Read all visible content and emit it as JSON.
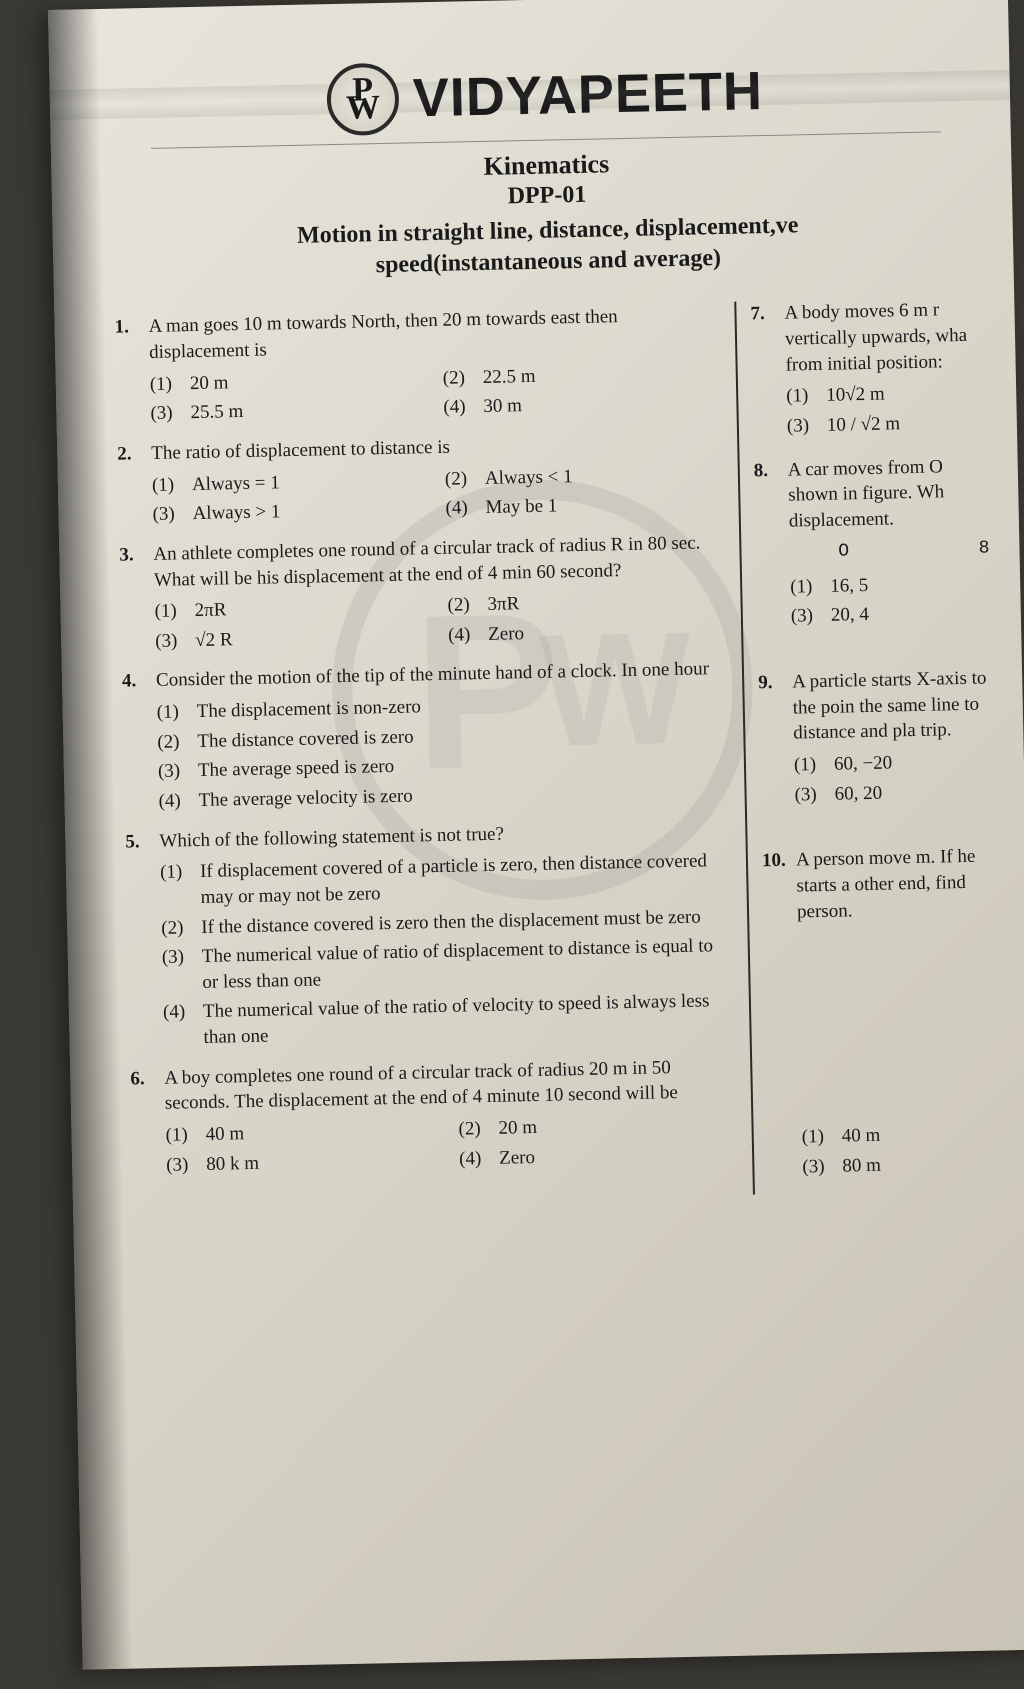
{
  "page": {
    "brand": "VIDYAPEETH",
    "logo_top": "P",
    "logo_bottom": "W",
    "subject": "Kinematics",
    "dpp": "DPP-01",
    "topic_line1": "Motion in straight line, distance, displacement,ve",
    "topic_line2": "speed(instantaneous and average)",
    "background_color": "#3a3832",
    "paper_bg_light": "#e8e5dc",
    "paper_bg_dark": "#c8c3b5",
    "text_color": "#1a1a1a",
    "watermark_letter": "P",
    "watermark_letter2": "W"
  },
  "left_questions": [
    {
      "num": "1.",
      "stem": "A man goes 10 m towards North, then 20 m towards east then displacement is",
      "layout": "2col",
      "opts": [
        {
          "n": "(1)",
          "t": "20 m"
        },
        {
          "n": "(2)",
          "t": "22.5 m"
        },
        {
          "n": "(3)",
          "t": "25.5 m"
        },
        {
          "n": "(4)",
          "t": "30 m"
        }
      ]
    },
    {
      "num": "2.",
      "stem": "The ratio of displacement to distance is",
      "layout": "2col",
      "opts": [
        {
          "n": "(1)",
          "t": "Always = 1"
        },
        {
          "n": "(2)",
          "t": "Always < 1"
        },
        {
          "n": "(3)",
          "t": "Always > 1"
        },
        {
          "n": "(4)",
          "t": "May be 1"
        }
      ]
    },
    {
      "num": "3.",
      "stem": "An athlete completes one round of a circular track of radius R in 80 sec. What will be his displacement at the end of 4 min 60 second?",
      "layout": "2col",
      "opts": [
        {
          "n": "(1)",
          "t": "2πR"
        },
        {
          "n": "(2)",
          "t": "3πR"
        },
        {
          "n": "(3)",
          "t": "√2 R"
        },
        {
          "n": "(4)",
          "t": "Zero"
        }
      ]
    },
    {
      "num": "4.",
      "stem": "Consider the motion of the tip of the minute hand of a clock. In one hour",
      "layout": "1col",
      "opts": [
        {
          "n": "(1)",
          "t": "The displacement is non-zero"
        },
        {
          "n": "(2)",
          "t": "The distance covered is zero"
        },
        {
          "n": "(3)",
          "t": "The average speed is zero"
        },
        {
          "n": "(4)",
          "t": "The average velocity is zero"
        }
      ]
    },
    {
      "num": "5.",
      "stem": "Which of the following statement is not true?",
      "layout": "1col",
      "opts": [
        {
          "n": "(1)",
          "t": "If displacement covered of a particle is zero, then distance covered may or may not be zero"
        },
        {
          "n": "(2)",
          "t": "If the distance covered is zero then the displacement must be zero"
        },
        {
          "n": "(3)",
          "t": "The numerical value of ratio of displacement to distance is equal to or less than one"
        },
        {
          "n": "(4)",
          "t": "The numerical value of the ratio of velocity to speed is always less than one"
        }
      ]
    },
    {
      "num": "6.",
      "stem": "A boy completes one round of a circular track of radius 20 m in 50 seconds. The displacement at the end of 4 minute 10 second will be",
      "layout": "2col",
      "opts": [
        {
          "n": "(1)",
          "t": "40 m"
        },
        {
          "n": "(2)",
          "t": "20 m"
        },
        {
          "n": "(3)",
          "t": "80 k m"
        },
        {
          "n": "(4)",
          "t": "Zero"
        }
      ]
    }
  ],
  "right_questions": [
    {
      "num": "7.",
      "stem": "A body moves 6 m r vertically upwards, wha from initial position:",
      "layout": "1col",
      "opts": [
        {
          "n": "(1)",
          "t": "10√2 m"
        },
        {
          "n": "(3)",
          "t": "10 / √2 m"
        }
      ]
    },
    {
      "num": "8.",
      "stem": "A car moves from O shown in figure. Wh displacement.",
      "diagram_label": "O            8",
      "layout": "1col",
      "opts": [
        {
          "n": "(1)",
          "t": "16, 5"
        },
        {
          "n": "(3)",
          "t": "20, 4"
        }
      ]
    },
    {
      "num": "9.",
      "stem": "A particle starts X-axis to the poin the same line to distance and pla trip.",
      "layout": "1col",
      "opts": [
        {
          "n": "(1)",
          "t": "60, −20"
        },
        {
          "n": "(3)",
          "t": "60, 20"
        }
      ]
    },
    {
      "num": "10.",
      "stem": "A person move m. If he starts a other end, find person.",
      "layout": "1col",
      "opts": [
        {
          "n": "(1)",
          "t": "40 m"
        },
        {
          "n": "(3)",
          "t": "80 m"
        }
      ]
    }
  ]
}
